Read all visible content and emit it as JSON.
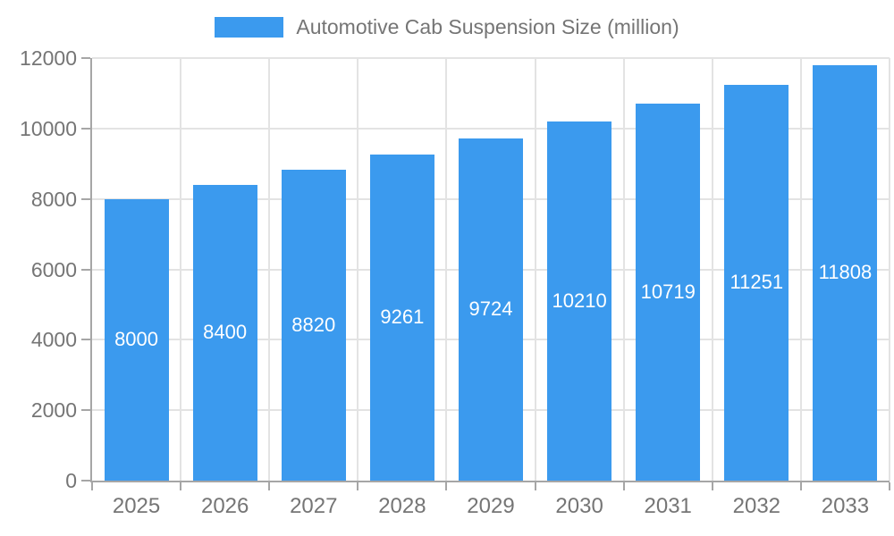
{
  "legend": {
    "swatch_color": "#3b9aee"
  },
  "colors": {
    "bar": "#3b9aee",
    "bar_label": "#ffffff",
    "axis_text": "#757575",
    "axis_line": "#a6a6a6",
    "gridline": "#e3e3e3",
    "background": "#ffffff"
  },
  "chart_data": {
    "type": "bar",
    "title": "Automotive Cab Suspension Size (million)",
    "categories": [
      "2025",
      "2026",
      "2027",
      "2028",
      "2029",
      "2030",
      "2031",
      "2032",
      "2033"
    ],
    "values": [
      8000,
      8400,
      8820,
      9261,
      9724,
      10210,
      10719,
      11251,
      11808
    ],
    "bar_labels": [
      "8000",
      "8400",
      "8820",
      "9261",
      "9724",
      "10210",
      "10719",
      "11251",
      "11808"
    ],
    "xlabel": "",
    "ylabel": "",
    "ylim": [
      0,
      12000
    ],
    "y_ticks": [
      0,
      2000,
      4000,
      6000,
      8000,
      10000,
      12000
    ],
    "y_tick_labels": [
      "0",
      "2000",
      "4000",
      "6000",
      "8000",
      "10000",
      "12000"
    ],
    "grid": true,
    "legend_position": "top",
    "bar_label_position": "inside-center"
  }
}
